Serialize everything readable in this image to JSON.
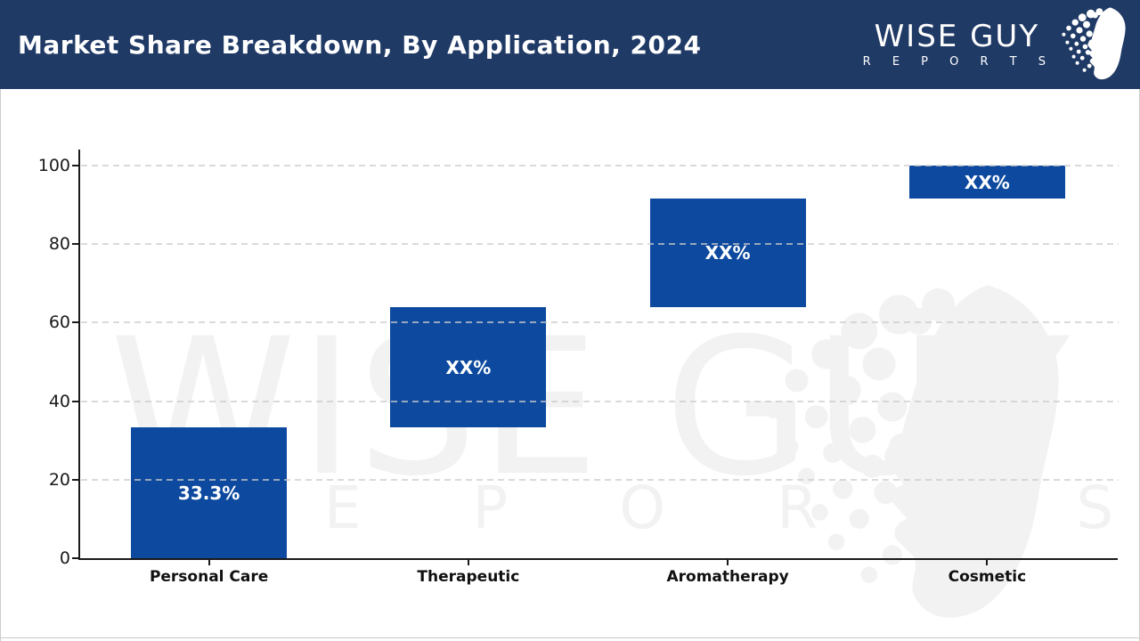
{
  "header": {
    "title": "Market Share Breakdown, By Application, 2024",
    "logo": {
      "wordmark": "WISE GUY",
      "reports": "R E P O R T S"
    }
  },
  "watermark": {
    "wordmark": "WISE GUY",
    "reports": "R E P O R T S"
  },
  "colors": {
    "header_background": "#203a66",
    "bar_blue": "#0d4a9f",
    "bar_label": "#ffffff",
    "axis": "#1a1a1a",
    "gridline": "#d9d9d9",
    "watermark": "#f2f2f2",
    "frame_border": "#cccccc"
  },
  "chart_data": {
    "type": "bar",
    "variant": "waterfall",
    "title": "Market Share Breakdown, By Application, 2024",
    "categories": [
      "Personal Care",
      "Therapeutic",
      "Aromatherapy",
      "Cosmetic"
    ],
    "segments": [
      {
        "category": "Personal Care",
        "start": 0,
        "end": 33.3,
        "label": "33.3%"
      },
      {
        "category": "Therapeutic",
        "start": 33.3,
        "end": 63.9,
        "label": "XX%"
      },
      {
        "category": "Aromatherapy",
        "start": 63.9,
        "end": 91.6,
        "label": "XX%"
      },
      {
        "category": "Cosmetic",
        "start": 91.6,
        "end": 100,
        "label": "XX%"
      }
    ],
    "xlabel": "",
    "ylabel": "",
    "y_ticks": [
      0,
      20,
      40,
      60,
      80,
      100
    ],
    "ylim": [
      0,
      104
    ],
    "grid": "horizontal-dashed",
    "legend": "none",
    "bar_color": "#0d4a9f",
    "bar_label_color": "#ffffff"
  }
}
